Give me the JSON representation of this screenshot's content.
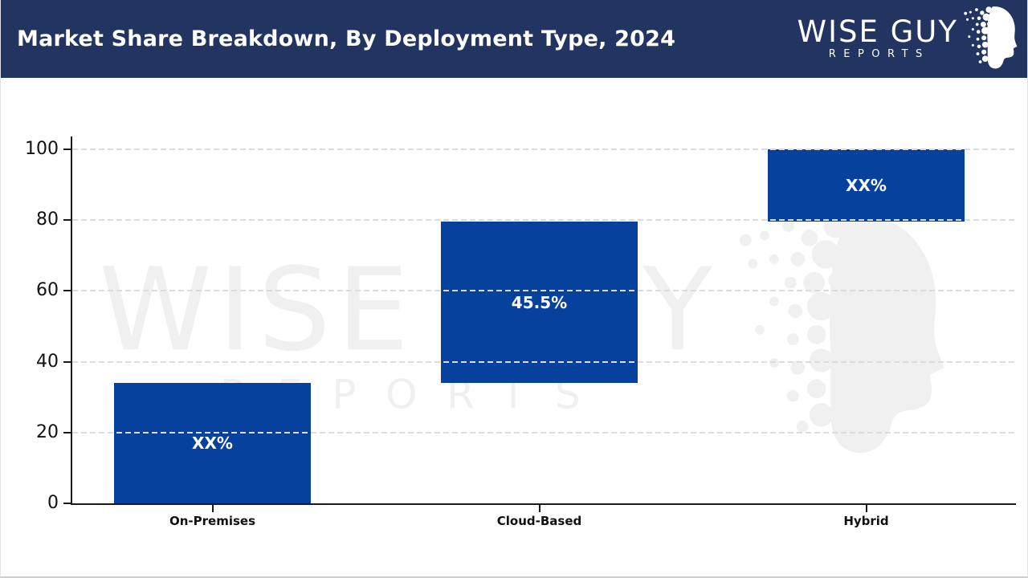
{
  "header": {
    "title": "Market Share Breakdown, By Deployment Type, 2024",
    "logo": {
      "line1": "WISE GUY",
      "line2": "REPORTS"
    }
  },
  "watermark": {
    "line1": "WISE GUY",
    "line2": "REPORTS"
  },
  "chart_data": {
    "type": "bar",
    "subtype": "waterfall",
    "title": "Market Share Breakdown, By Deployment Type, 2024",
    "categories": [
      "On-Premises",
      "Cloud-Based",
      "Hybrid"
    ],
    "segments": [
      {
        "category": "On-Premises",
        "start": 0,
        "end": 34,
        "label": "XX%"
      },
      {
        "category": "Cloud-Based",
        "start": 34,
        "end": 79.5,
        "label": "45.5%"
      },
      {
        "category": "Hybrid",
        "start": 79.5,
        "end": 100,
        "label": "XX%"
      }
    ],
    "y_ticks": [
      0,
      20,
      40,
      60,
      80,
      100
    ],
    "ylim": [
      0,
      100
    ],
    "xlabel": "",
    "ylabel": "",
    "grid": "horizontal-dashed, drawn over bars",
    "legend": "none",
    "bar_color": "#07419e"
  },
  "colors": {
    "header_bg": "#223460",
    "bar": "#07419e",
    "grid": "#dcdcdc",
    "axis": "#1a1a1a",
    "watermark": "#f0f0f1",
    "background": "#ffffff"
  }
}
